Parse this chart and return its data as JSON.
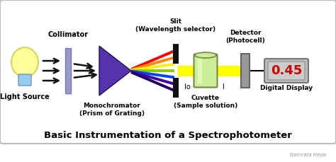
{
  "title": "Basic Instrumentation of a Spectrophotometer",
  "title_fontsize": 9.5,
  "bg_color": "#ffffff",
  "border_color": "#bbbbbb",
  "text_color": "#000000",
  "watermark": "Namrata Heda",
  "rainbow_colors": [
    "#ff0000",
    "#ff8800",
    "#ffee00",
    "#88cc00",
    "#0044ff",
    "#4400aa",
    "#220066"
  ],
  "beam_color": "#ffff00",
  "arrow_color": "#111111",
  "prism_color": "#5533aa",
  "collimator_color": "#9999cc",
  "slit_color": "#111111",
  "cuvette_fill": "#ccee99",
  "cuvette_outline": "#778844",
  "cuvette_highlight": "#eeffcc",
  "detector_color": "#999999",
  "display_bg": "#bbbbbb",
  "display_inner": "#cccccc",
  "display_text_color": "#cc0000",
  "display_value": "0.45",
  "bulb_color": "#ffff99",
  "bulb_outline": "#cccc44",
  "base_color": "#99ccee",
  "base_outline": "#6699bb"
}
